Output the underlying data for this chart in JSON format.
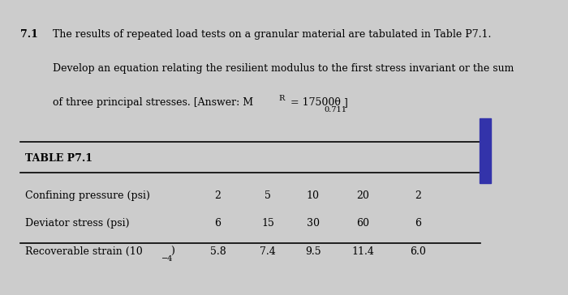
{
  "bg_color": "#cccccc",
  "problem_number": "7.1",
  "problem_text_line1": "The results of repeated load tests on a granular material are tabulated in Table P7.1.",
  "problem_text_line2": "Develop an equation relating the resilient modulus to the first stress invariant or the sum",
  "problem_text_line3": "of three principal stresses. [Answer: M",
  "table_title": "TABLE P7.1",
  "row1_label": "Confining pressure (psi)",
  "row1_values": [
    "2",
    "5",
    "10",
    "20",
    "2"
  ],
  "row2_label": "Deviator stress (psi)",
  "row2_values": [
    "6",
    "15",
    "30",
    "60",
    "6"
  ],
  "row3_label": "Recoverable strain (10",
  "row3_values": [
    "5.8",
    "7.4",
    "9.5",
    "11.4",
    "6.0"
  ],
  "font_size_body": 9,
  "font_size_table": 9,
  "blue_bar_color": "#3333aa"
}
